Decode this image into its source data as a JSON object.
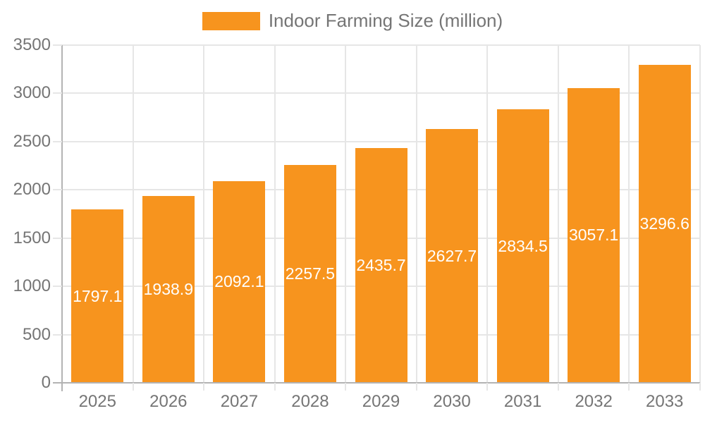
{
  "legend": {
    "label": "Indoor Farming Size (million)"
  },
  "chart_data": {
    "type": "bar",
    "title": "",
    "categories": [
      "2025",
      "2026",
      "2027",
      "2028",
      "2029",
      "2030",
      "2031",
      "2032",
      "2033"
    ],
    "series": [
      {
        "name": "Indoor Farming Size (million)",
        "values": [
          1797.1,
          1938.9,
          2092.1,
          2257.5,
          2435.7,
          2627.7,
          2834.5,
          3057.1,
          3296.6
        ]
      }
    ],
    "xlabel": "",
    "ylabel": "",
    "ylim": [
      0,
      3500
    ],
    "yticks": [
      0,
      500,
      1000,
      1500,
      2000,
      2500,
      3000,
      3500
    ],
    "grid": true,
    "legend_position": "top",
    "colors": {
      "bar": "#f7941e",
      "bar_label_text": "#ffffff",
      "axis_line": "#b3b3b3",
      "gridline": "#e6e6e6",
      "axis_text": "#757575",
      "legend_text": "#757575",
      "background": "#ffffff"
    }
  }
}
